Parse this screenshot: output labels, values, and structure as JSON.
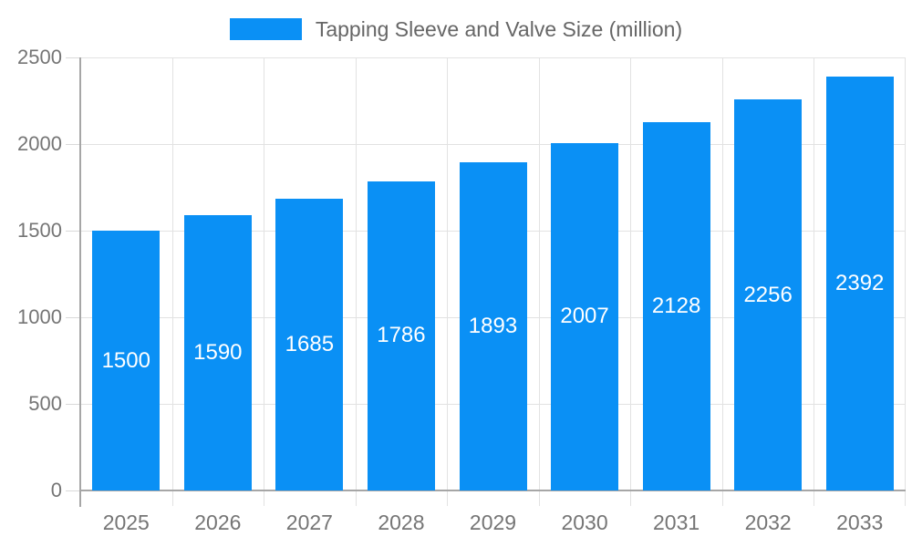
{
  "legend": {
    "label": "Tapping Sleeve and Valve Size (million)"
  },
  "chart_data": {
    "type": "bar",
    "title": "Tapping Sleeve and Valve Size (million)",
    "series_name": "Tapping Sleeve and Valve Size (million)",
    "categories": [
      "2025",
      "2026",
      "2027",
      "2028",
      "2029",
      "2030",
      "2031",
      "2032",
      "2033"
    ],
    "values": [
      1500,
      1590,
      1685,
      1786,
      1893,
      2007,
      2128,
      2256,
      2392
    ],
    "xlabel": "",
    "ylabel": "",
    "ylim": [
      0,
      2500
    ],
    "yticks": [
      0,
      500,
      1000,
      1500,
      2000,
      2500
    ],
    "grid": true,
    "legend_position": "top",
    "bar_color": "#0a90f5",
    "value_label_color": "#ffffff"
  },
  "colors": {
    "bar": "#0a90f5",
    "grid_light": "#e2e2e2",
    "axis_line": "#a6a6a6",
    "tick": "#d9d9d9",
    "axis_text": "#757575",
    "legend_text": "#666666",
    "background": "#ffffff"
  }
}
